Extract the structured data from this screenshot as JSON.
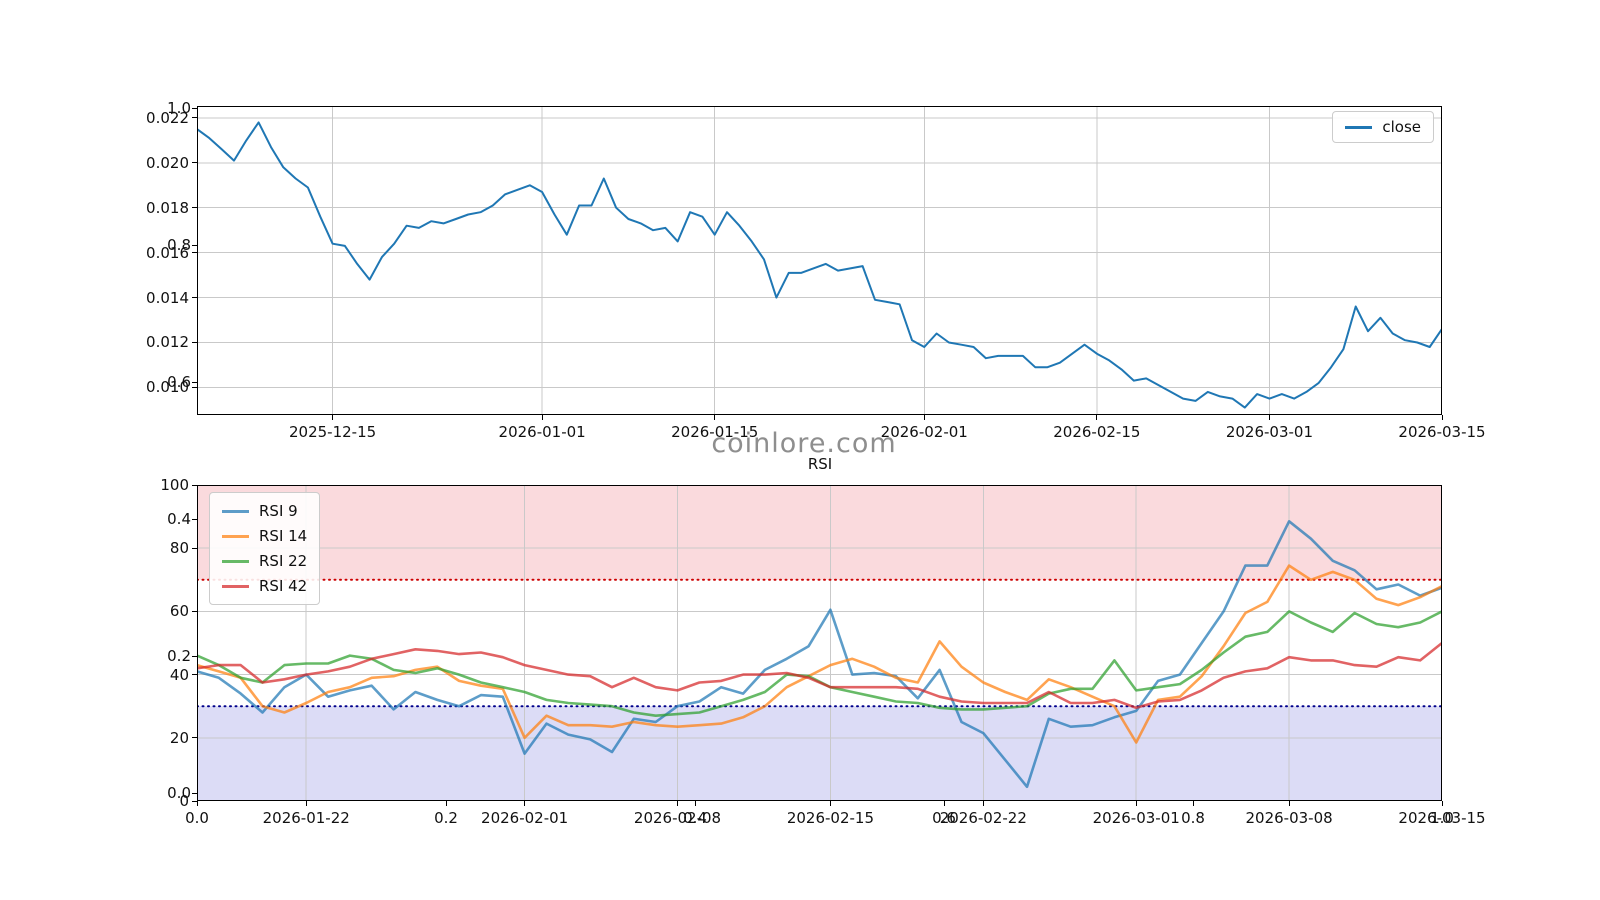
{
  "watermark": "coinlore.com",
  "secondary_axis": {
    "x_labels": [
      {
        "label": "0.0",
        "f": 0.0
      },
      {
        "label": "0.2",
        "f": 0.2
      },
      {
        "label": "0.4",
        "f": 0.4
      },
      {
        "label": "0.6",
        "f": 0.6
      },
      {
        "label": "0.8",
        "f": 0.8
      },
      {
        "label": "1.0",
        "f": 1.0
      }
    ],
    "y_labels": [
      {
        "label": "1.0",
        "f": 1.0
      },
      {
        "label": "0.8",
        "f": 0.8
      },
      {
        "label": "0.6",
        "f": 0.6
      },
      {
        "label": "0.4",
        "f": 0.4
      },
      {
        "label": "0.2",
        "f": 0.2
      },
      {
        "label": "0.0",
        "f": 0.0
      }
    ]
  },
  "chart_data": [
    {
      "type": "line",
      "name": "price",
      "title": "",
      "xlabel": "",
      "ylabel": "",
      "grid": true,
      "legend_position": "upper right",
      "ylim": [
        0.00877,
        0.02253
      ],
      "yticks": [
        {
          "label": "0.022",
          "v": 0.022
        },
        {
          "label": "0.020",
          "v": 0.02
        },
        {
          "label": "0.018",
          "v": 0.018
        },
        {
          "label": "0.016",
          "v": 0.016
        },
        {
          "label": "0.014",
          "v": 0.014
        },
        {
          "label": "0.012",
          "v": 0.012
        },
        {
          "label": "0.010",
          "v": 0.01
        }
      ],
      "xticks": [
        {
          "label": "2025-12-15",
          "i": 11
        },
        {
          "label": "2026-01-01",
          "i": 28
        },
        {
          "label": "2026-01-15",
          "i": 42
        },
        {
          "label": "2026-02-01",
          "i": 59
        },
        {
          "label": "2026-02-15",
          "i": 73
        },
        {
          "label": "2026-03-01",
          "i": 87
        },
        {
          "label": "2026-03-15",
          "i": 101
        }
      ],
      "x": [
        "2025-12-04",
        "2025-12-05",
        "2025-12-06",
        "2025-12-07",
        "2025-12-08",
        "2025-12-09",
        "2025-12-10",
        "2025-12-11",
        "2025-12-12",
        "2025-12-13",
        "2025-12-14",
        "2025-12-15",
        "2025-12-16",
        "2025-12-17",
        "2025-12-18",
        "2025-12-19",
        "2025-12-20",
        "2025-12-21",
        "2025-12-22",
        "2025-12-23",
        "2025-12-24",
        "2025-12-25",
        "2025-12-26",
        "2025-12-27",
        "2025-12-28",
        "2025-12-29",
        "2025-12-30",
        "2025-12-31",
        "2026-01-01",
        "2026-01-02",
        "2026-01-03",
        "2026-01-04",
        "2026-01-05",
        "2026-01-06",
        "2026-01-07",
        "2026-01-08",
        "2026-01-09",
        "2026-01-10",
        "2026-01-11",
        "2026-01-12",
        "2026-01-13",
        "2026-01-14",
        "2026-01-15",
        "2026-01-16",
        "2026-01-17",
        "2026-01-18",
        "2026-01-19",
        "2026-01-20",
        "2026-01-21",
        "2026-01-22",
        "2026-01-23",
        "2026-01-24",
        "2026-01-25",
        "2026-01-26",
        "2026-01-27",
        "2026-01-28",
        "2026-01-29",
        "2026-01-30",
        "2026-01-31",
        "2026-02-01",
        "2026-02-02",
        "2026-02-03",
        "2026-02-04",
        "2026-02-05",
        "2026-02-06",
        "2026-02-07",
        "2026-02-08",
        "2026-02-09",
        "2026-02-10",
        "2026-02-11",
        "2026-02-12",
        "2026-02-13",
        "2026-02-14",
        "2026-02-15",
        "2026-02-16",
        "2026-02-17",
        "2026-02-18",
        "2026-02-19",
        "2026-02-20",
        "2026-02-21",
        "2026-02-22",
        "2026-02-23",
        "2026-02-24",
        "2026-02-25",
        "2026-02-26",
        "2026-02-27",
        "2026-02-28",
        "2026-03-01",
        "2026-03-02",
        "2026-03-03",
        "2026-03-04",
        "2026-03-05",
        "2026-03-06",
        "2026-03-07",
        "2026-03-08",
        "2026-03-09",
        "2026-03-10",
        "2026-03-11",
        "2026-03-12",
        "2026-03-13",
        "2026-03-14",
        "2026-03-15"
      ],
      "series": [
        {
          "name": "close",
          "color": "#1f77b4",
          "width": 2,
          "opacity": 1,
          "values": [
            0.0215,
            0.0211,
            0.0206,
            0.0201,
            0.021,
            0.0218,
            0.0207,
            0.0198,
            0.0193,
            0.0189,
            0.0176,
            0.0164,
            0.0163,
            0.0155,
            0.0148,
            0.0158,
            0.0164,
            0.0172,
            0.0171,
            0.0174,
            0.0173,
            0.0175,
            0.0177,
            0.0178,
            0.0181,
            0.0186,
            0.0188,
            0.019,
            0.0187,
            0.0177,
            0.0168,
            0.0181,
            0.0181,
            0.0193,
            0.018,
            0.0175,
            0.0173,
            0.017,
            0.0171,
            0.0165,
            0.0178,
            0.0176,
            0.0168,
            0.0178,
            0.0172,
            0.0165,
            0.0157,
            0.014,
            0.0151,
            0.0151,
            0.0153,
            0.0155,
            0.0152,
            0.0153,
            0.0154,
            0.0139,
            0.0138,
            0.0137,
            0.0121,
            0.0118,
            0.0124,
            0.012,
            0.0119,
            0.0118,
            0.0113,
            0.0114,
            0.0114,
            0.0114,
            0.0109,
            0.0109,
            0.0111,
            0.0115,
            0.0119,
            0.0115,
            0.0112,
            0.0108,
            0.0103,
            0.0104,
            0.0101,
            0.0098,
            0.0095,
            0.0094,
            0.0098,
            0.0096,
            0.0095,
            0.0091,
            0.0097,
            0.0095,
            0.0097,
            0.0095,
            0.0098,
            0.0102,
            0.0109,
            0.0117,
            0.0136,
            0.0125,
            0.0131,
            0.0124,
            0.0121,
            0.012,
            0.0118,
            0.0126
          ]
        }
      ]
    },
    {
      "type": "line",
      "name": "rsi",
      "title": "RSI",
      "xlabel": "",
      "ylabel": "",
      "grid": true,
      "legend_position": "upper left",
      "ylim": [
        0,
        100
      ],
      "yticks": [
        {
          "label": "100",
          "v": 100
        },
        {
          "label": "80",
          "v": 80
        },
        {
          "label": "60",
          "v": 60
        },
        {
          "label": "40",
          "v": 40
        },
        {
          "label": "20",
          "v": 20
        },
        {
          "label": "0",
          "v": 0
        }
      ],
      "xticks": [
        {
          "label": "2026-01-22",
          "i": 5
        },
        {
          "label": "2026-02-01",
          "i": 15
        },
        {
          "label": "2026-02-08",
          "i": 22
        },
        {
          "label": "2026-02-15",
          "i": 29
        },
        {
          "label": "2026-02-22",
          "i": 36
        },
        {
          "label": "2026-03-01",
          "i": 43
        },
        {
          "label": "2026-03-08",
          "i": 50
        },
        {
          "label": "2026-03-15",
          "i": 57
        }
      ],
      "bands": [
        {
          "name": "overbought-band",
          "from": 70,
          "to": 100,
          "color": "#fadadd"
        },
        {
          "name": "oversold-band",
          "from": 0,
          "to": 30,
          "color": "#dcdcf6"
        }
      ],
      "hlines": [
        {
          "name": "overbought-line",
          "y": 70,
          "color": "#cc0000"
        },
        {
          "name": "oversold-line",
          "y": 30,
          "color": "#00008b"
        }
      ],
      "x": [
        "2026-01-17",
        "2026-01-18",
        "2026-01-19",
        "2026-01-20",
        "2026-01-21",
        "2026-01-22",
        "2026-01-23",
        "2026-01-24",
        "2026-01-25",
        "2026-01-26",
        "2026-01-27",
        "2026-01-28",
        "2026-01-29",
        "2026-01-30",
        "2026-01-31",
        "2026-02-01",
        "2026-02-02",
        "2026-02-03",
        "2026-02-04",
        "2026-02-05",
        "2026-02-06",
        "2026-02-07",
        "2026-02-08",
        "2026-02-09",
        "2026-02-10",
        "2026-02-11",
        "2026-02-12",
        "2026-02-13",
        "2026-02-14",
        "2026-02-15",
        "2026-02-16",
        "2026-02-17",
        "2026-02-18",
        "2026-02-19",
        "2026-02-20",
        "2026-02-21",
        "2026-02-22",
        "2026-02-23",
        "2026-02-24",
        "2026-02-25",
        "2026-02-26",
        "2026-02-27",
        "2026-02-28",
        "2026-03-01",
        "2026-03-02",
        "2026-03-03",
        "2026-03-04",
        "2026-03-05",
        "2026-03-06",
        "2026-03-07",
        "2026-03-08",
        "2026-03-09",
        "2026-03-10",
        "2026-03-11",
        "2026-03-12",
        "2026-03-13",
        "2026-03-14",
        "2026-03-15"
      ],
      "series": [
        {
          "name": "RSI 9",
          "color": "#1f77b4",
          "width": 2.6,
          "opacity": 0.72,
          "values": [
            41,
            39,
            34,
            28,
            36,
            40,
            33,
            35,
            36.5,
            29,
            34.5,
            32,
            30,
            33.5,
            33,
            15,
            24.5,
            21,
            19.5,
            15.5,
            26,
            25,
            30,
            31.5,
            36,
            34,
            41.5,
            45,
            49,
            60.5,
            40,
            40.5,
            39.5,
            32.5,
            41.5,
            25,
            21.5,
            13,
            4.5,
            26,
            23.5,
            24,
            26.5,
            28.5,
            38,
            40,
            50,
            60,
            74.5,
            74.5,
            88.5,
            83,
            76,
            73,
            67,
            68.5,
            65,
            67.5
          ]
        },
        {
          "name": "RSI 14",
          "color": "#ff7f0e",
          "width": 2.6,
          "opacity": 0.72,
          "values": [
            43,
            41,
            39,
            30,
            28,
            31,
            34.5,
            36,
            39,
            39.5,
            41.5,
            42.5,
            38,
            36.5,
            35.5,
            20,
            27,
            24,
            24,
            23.5,
            25,
            24,
            23.5,
            24,
            24.5,
            26.5,
            30,
            36,
            39.5,
            43,
            45,
            42.5,
            39,
            37.5,
            50.5,
            42.5,
            37.5,
            34.5,
            32,
            38.5,
            36,
            33,
            30,
            18.5,
            32,
            33,
            39.5,
            49,
            59.5,
            63,
            74.5,
            70,
            72.5,
            70,
            64,
            62,
            64.5,
            68
          ]
        },
        {
          "name": "RSI 22",
          "color": "#2ca02c",
          "width": 2.6,
          "opacity": 0.72,
          "values": [
            46,
            43,
            39,
            37.5,
            43,
            43.5,
            43.5,
            46,
            45,
            41.5,
            40.5,
            42,
            40,
            37.5,
            36,
            34.5,
            32,
            31,
            30.5,
            30,
            28,
            27,
            27.5,
            28,
            30,
            32,
            34.5,
            40,
            39.5,
            36,
            34.5,
            33,
            31.5,
            31,
            29.5,
            29,
            29,
            29.5,
            30,
            34,
            35.5,
            35.5,
            44.5,
            35,
            36,
            37,
            41.5,
            47,
            52,
            53.5,
            60,
            56.5,
            53.5,
            59.5,
            56,
            55,
            56.5,
            60
          ]
        },
        {
          "name": "RSI 42",
          "color": "#d62728",
          "width": 2.6,
          "opacity": 0.72,
          "values": [
            42,
            43,
            43,
            37.5,
            38.5,
            40,
            41,
            42.5,
            45,
            46.5,
            48,
            47.5,
            46.5,
            47,
            45.5,
            43,
            41.5,
            40,
            39.5,
            36,
            39,
            36,
            35,
            37.5,
            38,
            40,
            40,
            40.5,
            39,
            36,
            36,
            36,
            36,
            35.5,
            33,
            31.5,
            31,
            31,
            31,
            34.5,
            31,
            31,
            32,
            29.5,
            31.5,
            32,
            35,
            39,
            41,
            42,
            45.5,
            44.5,
            44.5,
            43,
            42.5,
            45.5,
            44.5,
            50
          ]
        }
      ]
    }
  ]
}
